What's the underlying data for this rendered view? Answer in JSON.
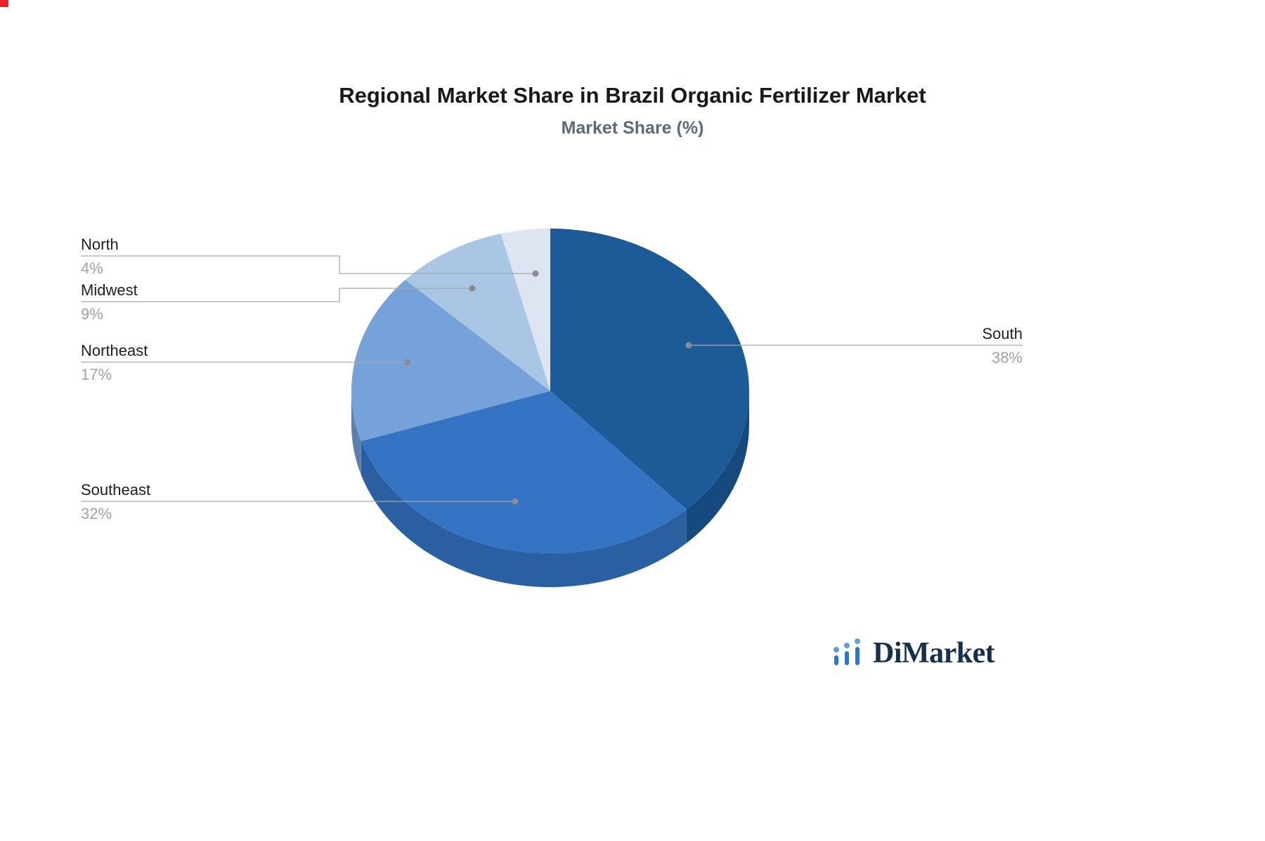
{
  "header": {
    "title": "Regional Market Share in Brazil Organic Fertilizer Market",
    "subtitle": "Market Share (%)"
  },
  "chart_data": {
    "type": "pie",
    "style": "3d",
    "title": "Regional Market Share in Brazil Organic Fertilizer Market",
    "subtitle": "Market Share (%)",
    "unit": "%",
    "categories": [
      "South",
      "Southeast",
      "Northeast",
      "Midwest",
      "North"
    ],
    "values": [
      38,
      32,
      17,
      9,
      4
    ],
    "slices": [
      {
        "name": "South",
        "value": 38,
        "label": "38%",
        "color": "#1d5a98",
        "side_color": "#164a7e"
      },
      {
        "name": "Southeast",
        "value": 32,
        "label": "32%",
        "color": "#3574c4",
        "side_color": "#2a5fa2"
      },
      {
        "name": "Northeast",
        "value": 17,
        "label": "17%",
        "color": "#74a2d9",
        "side_color": "#5b80ad"
      },
      {
        "name": "Midwest",
        "value": 9,
        "label": "9%",
        "color": "#a9c6e4",
        "side_color": "#86a0ba"
      },
      {
        "name": "North",
        "value": 4,
        "label": "4%",
        "color": "#dce5f1",
        "side_color": "#b2bac4"
      }
    ],
    "legend_position": "callout-labels",
    "grid": false,
    "label_color": "#1c1e21",
    "value_color": "#9ba1a6",
    "line_color": "#a7a7a7",
    "dot_color": "#898d92"
  },
  "logo": {
    "text": "DiMarket",
    "icon": "bar-chart-icon",
    "icon_color": "#2a77cc",
    "icon_dot_color": "#5f9fe0",
    "text_color": "#14304d"
  },
  "accents": {
    "corner_marker": "#e8262a",
    "background": "#ffffff"
  }
}
